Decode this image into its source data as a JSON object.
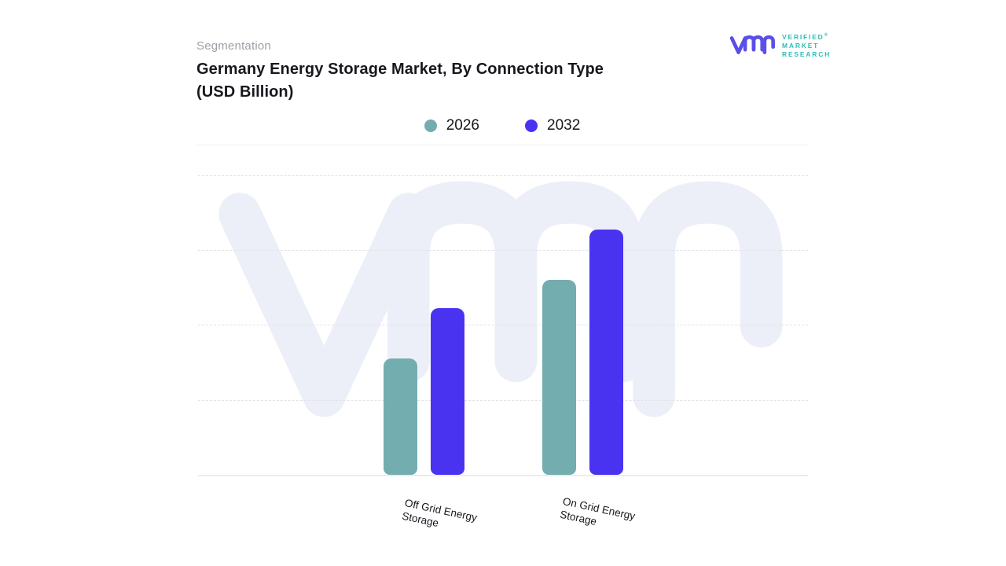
{
  "header": {
    "eyebrow": "Segmentation",
    "title_line1": "Germany Energy Storage Market, By Connection Type",
    "title_line2": "(USD Billion)"
  },
  "brand": {
    "glyph": "vmr-monogram",
    "glyph_color": "#5a4fe8",
    "text_color": "#2bbfb4",
    "lines": [
      "VERIFIED",
      "MARKET",
      "RESEARCH"
    ],
    "registered_mark": "®"
  },
  "legend": {
    "items": [
      {
        "label": "2026",
        "color": "#74adb0"
      },
      {
        "label": "2032",
        "color": "#4a33f0"
      }
    ]
  },
  "chart_data": {
    "type": "bar",
    "title": "Germany Energy Storage Market, By Connection Type (USD Billion)",
    "categories": [
      "Off Grid Energy Storage",
      "On Grid Energy Storage"
    ],
    "series": [
      {
        "name": "2026",
        "color": "#74adb0",
        "values": [
          1.55,
          2.6
        ]
      },
      {
        "name": "2032",
        "color": "#4a33f0",
        "values": [
          2.22,
          3.27
        ]
      }
    ],
    "xlabel": "",
    "ylabel": "",
    "ylim": [
      0,
      4
    ],
    "gridline_step": 1,
    "grid": "horizontal dashed, y-axis unlabeled",
    "legend_position": "top-center",
    "note": "values estimated in gridline units; no numeric y tick labels are shown"
  },
  "watermark": {
    "name": "vmr-watermark",
    "color": "#edeff8"
  }
}
